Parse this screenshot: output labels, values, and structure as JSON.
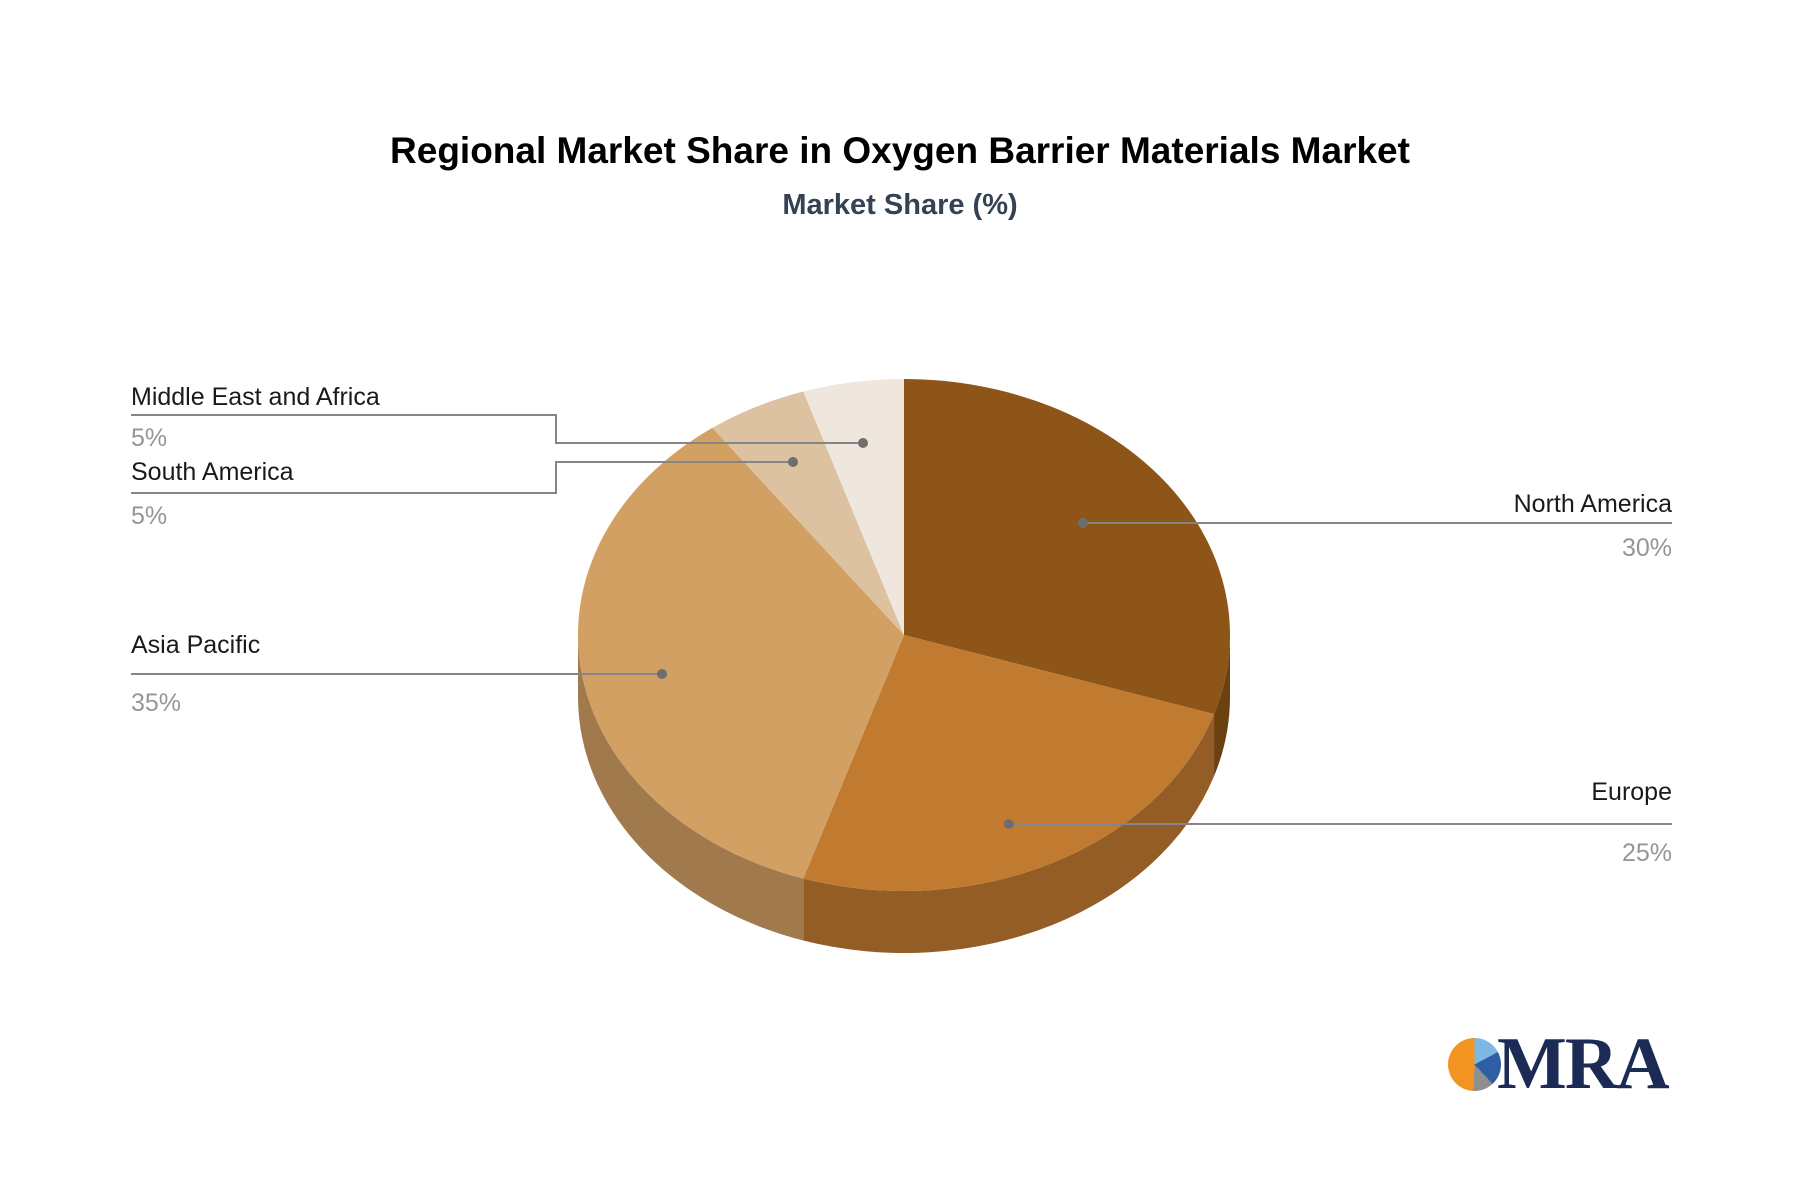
{
  "title": "Regional Market Share in Oxygen Barrier Materials Market",
  "subtitle": "Market Share (%)",
  "chart_data": {
    "type": "pie",
    "title": "Regional Market Share in Oxygen Barrier Materials Market",
    "subtitle": "Market Share (%)",
    "unit": "%",
    "start_angle_deg": 0,
    "direction": "clockwise",
    "style": "3d-pie",
    "legend": false,
    "labels": "callout-with-leader-lines",
    "slices": [
      {
        "label": "North America",
        "value": 30,
        "pct_label": "30%",
        "color": "#8D5618",
        "label_side": "right"
      },
      {
        "label": "Europe",
        "value": 25,
        "pct_label": "25%",
        "color": "#C17B31",
        "label_side": "right"
      },
      {
        "label": "Asia Pacific",
        "value": 35,
        "pct_label": "35%",
        "color": "#D3A064",
        "label_side": "left"
      },
      {
        "label": "South America",
        "value": 5,
        "pct_label": "5%",
        "color": "#DCC2A0",
        "label_side": "left"
      },
      {
        "label": "Middle East and Africa",
        "value": 5,
        "pct_label": "5%",
        "color": "#EFE7DE",
        "label_side": "left"
      }
    ]
  },
  "colors": {
    "background": "#FFFFFF",
    "title_text": "#000000",
    "subtitle_text": "#354254",
    "label_text": "#1A1A1A",
    "pct_text": "#969696",
    "leader_line": "#858585",
    "dot": "#6E6E6E"
  },
  "logo": {
    "text": "MRA",
    "text_color": "#1B2B55",
    "icon_colors": {
      "orange": "#F29422",
      "light_blue": "#7FB7E3",
      "dark_blue": "#2E5EA3",
      "gray": "#8F8F8F"
    }
  }
}
